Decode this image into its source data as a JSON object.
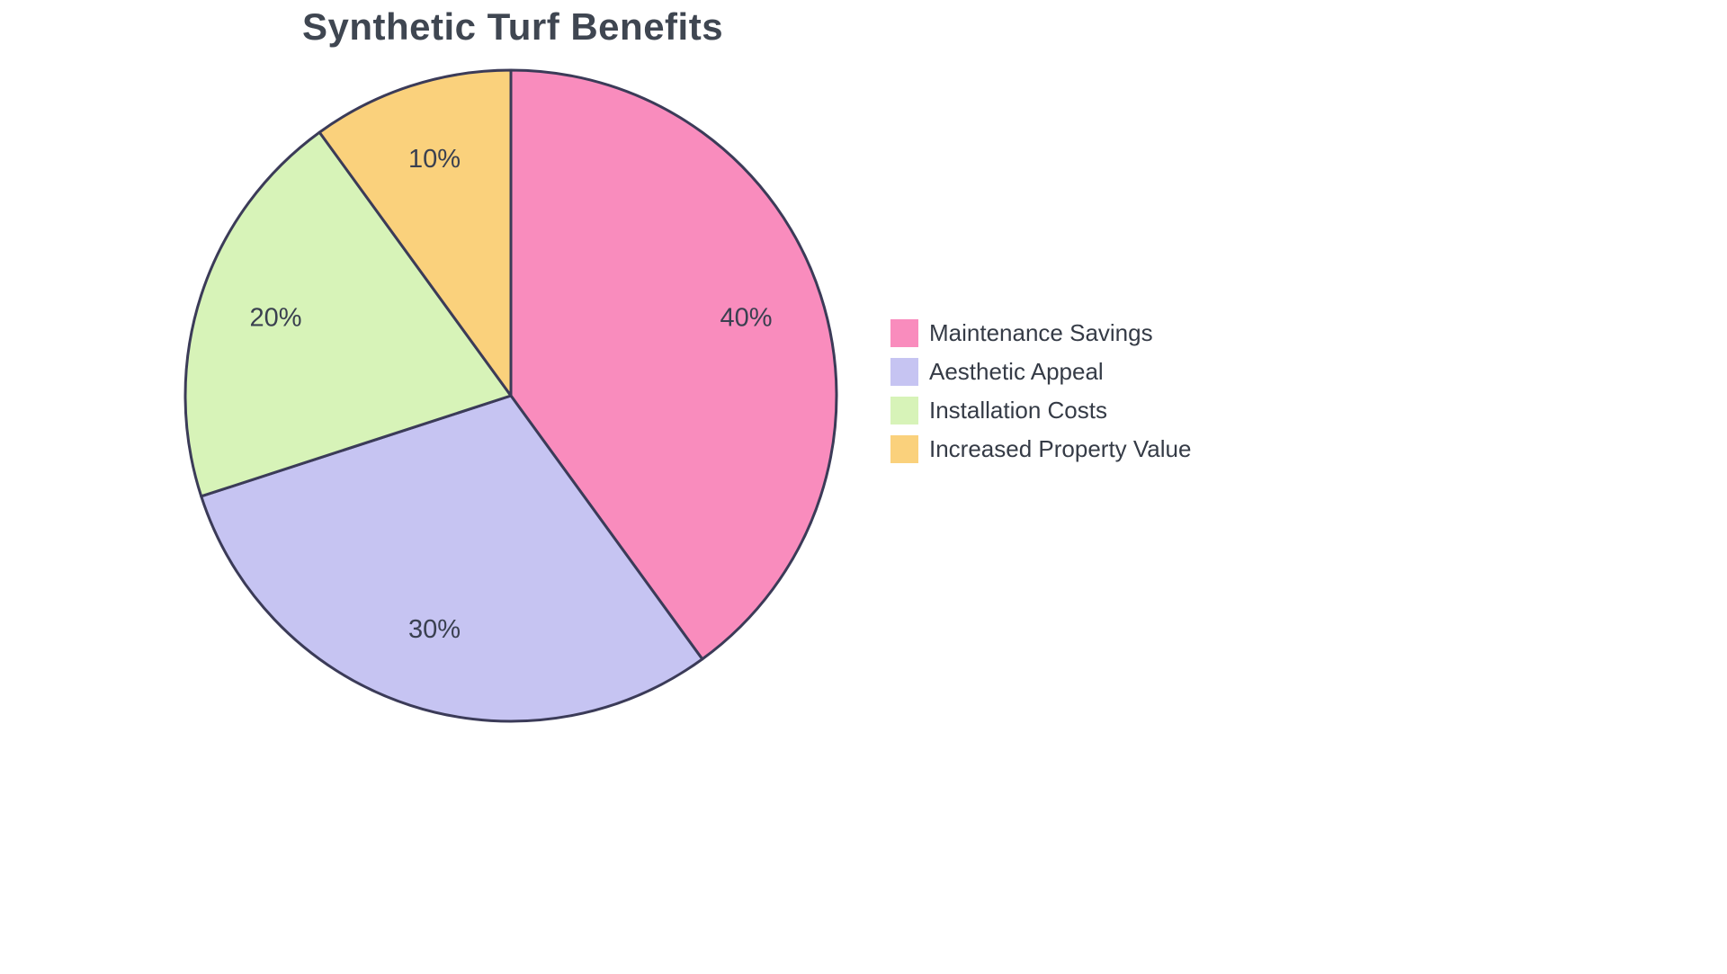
{
  "chart_data": {
    "type": "pie",
    "title": "Synthetic Turf Benefits",
    "categories": [
      "Maintenance Savings",
      "Aesthetic Appeal",
      "Installation Costs",
      "Increased Property Value"
    ],
    "values": [
      40,
      30,
      20,
      10
    ],
    "labels": [
      "40%",
      "30%",
      "20%",
      "10%"
    ],
    "colors": [
      "#F98CBD",
      "#C6C4F2",
      "#D7F3B8",
      "#FAD17C"
    ],
    "stroke_color": "#3B3B58",
    "start_angle_deg": 0,
    "direction": "clockwise",
    "legend_position": "right",
    "background": "#FFFFFF"
  }
}
